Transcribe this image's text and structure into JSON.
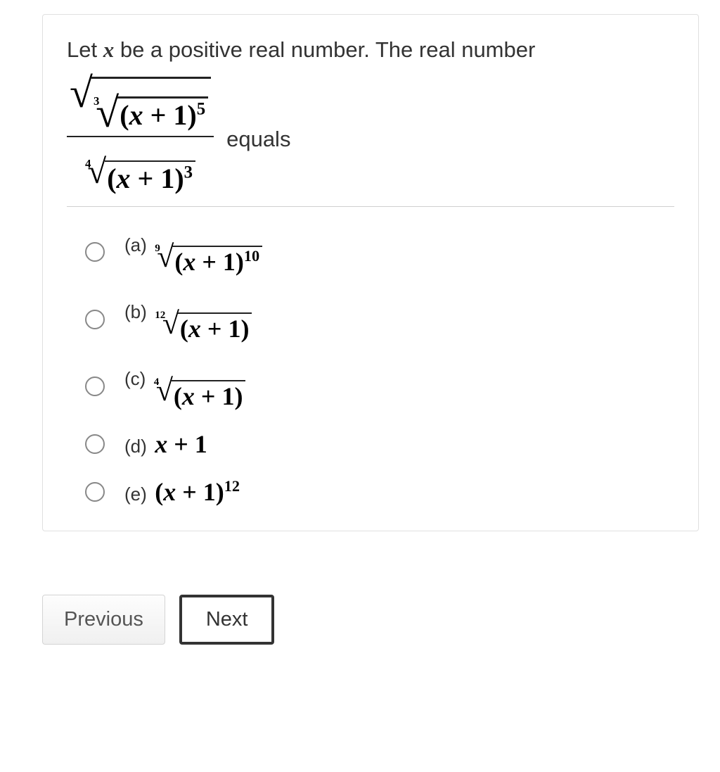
{
  "card": {
    "border_color": "#e0e0e0",
    "background": "#ffffff"
  },
  "question": {
    "intro_before_var": "Let ",
    "variable": "x",
    "intro_after_var": " be a positive real number. The real number",
    "equals_label": "equals",
    "expression": {
      "numerator_outer_root_index": "",
      "numerator_inner_root_index": "3",
      "numerator_base": "(x + 1)",
      "numerator_exp": "5",
      "denominator_root_index": "4",
      "denominator_base": "(x + 1)",
      "denominator_exp": "3"
    }
  },
  "options": [
    {
      "letter": "(a)",
      "root_index": "9",
      "base": "(x + 1)",
      "exp": "10"
    },
    {
      "letter": "(b)",
      "root_index": "12",
      "base": "(x + 1)",
      "exp": ""
    },
    {
      "letter": "(c)",
      "root_index": "4",
      "base": "(x + 1)",
      "exp": ""
    },
    {
      "letter": "(d)",
      "root_index": "",
      "base": "x + 1",
      "exp": ""
    },
    {
      "letter": "(e)",
      "root_index": "",
      "base": "(x + 1)",
      "exp": "12"
    }
  ],
  "buttons": {
    "previous": "Previous",
    "next": "Next"
  },
  "colors": {
    "text": "#333333",
    "divider": "#d0d0d0",
    "radio_border": "#888888",
    "btn_prev_bg_top": "#fdfdfd",
    "btn_prev_bg_bottom": "#f0f0f0",
    "btn_prev_border": "#d4d4d4",
    "btn_next_border": "#333333"
  }
}
